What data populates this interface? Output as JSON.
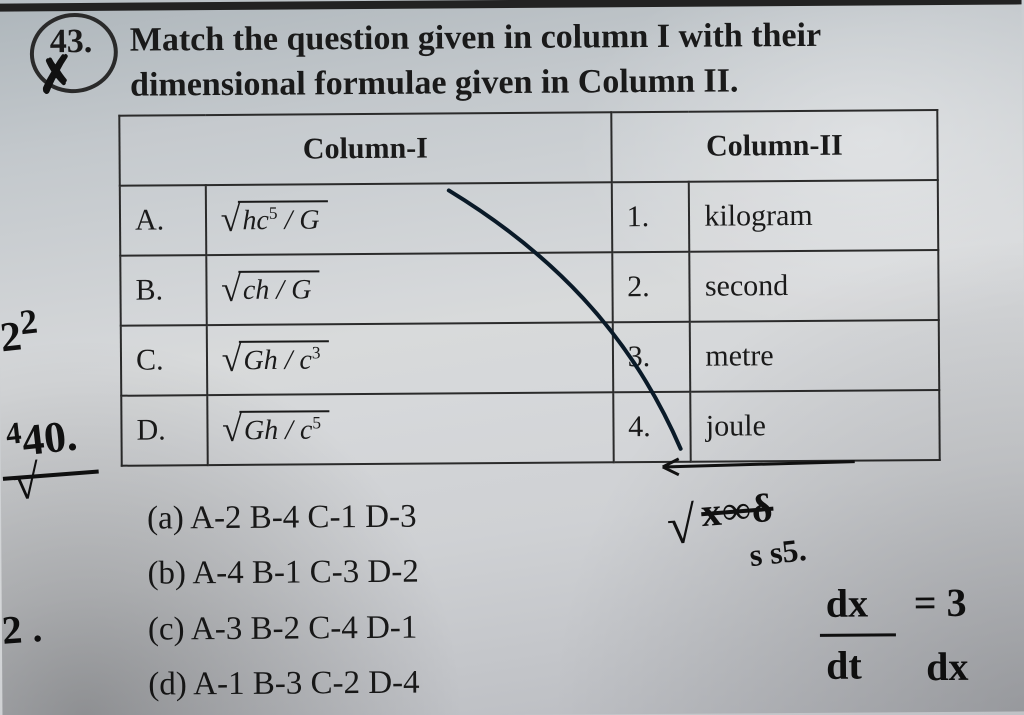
{
  "question": {
    "number": "43.",
    "text": "Match the question given in column I with their dimensional formulae given in Column II."
  },
  "table": {
    "header_left": "Column-I",
    "header_right": "Column-II",
    "rows": [
      {
        "l": "A.",
        "expr_body": "hc<sup>5</sup> / G",
        "n": "1.",
        "unit": "kilogram"
      },
      {
        "l": "B.",
        "expr_body": "ch / G",
        "n": "2.",
        "unit": "second"
      },
      {
        "l": "C.",
        "expr_body": "Gh / c<sup>3</sup>",
        "n": "3.",
        "unit": "metre"
      },
      {
        "l": "D.",
        "expr_body": "Gh / c<sup>5</sup>",
        "n": "4.",
        "unit": "joule"
      }
    ]
  },
  "options": {
    "a": "(a)  A-2  B-4  C-1  D-3",
    "b": "(b)  A-4  B-1  C-3  D-2",
    "c": "(c)  A-3  B-2  C-4  D-1",
    "d": "(d)  A-1  B-3  C-2  D-4"
  },
  "handwriting": {
    "cross": "✗",
    "t2": "2",
    "t2sup": "2",
    "r40pre": "4",
    "r40": "40.",
    "scribble_main": "x∞δ",
    "scribble_sub": "s   s5.",
    "dx": "dx",
    "eq3": "= 3",
    "dt": "dt",
    "dn": "dx",
    "two": "2 ."
  },
  "colors": {
    "ink": "#111111",
    "border": "#2b2b2b",
    "text": "#1a1a1a"
  }
}
